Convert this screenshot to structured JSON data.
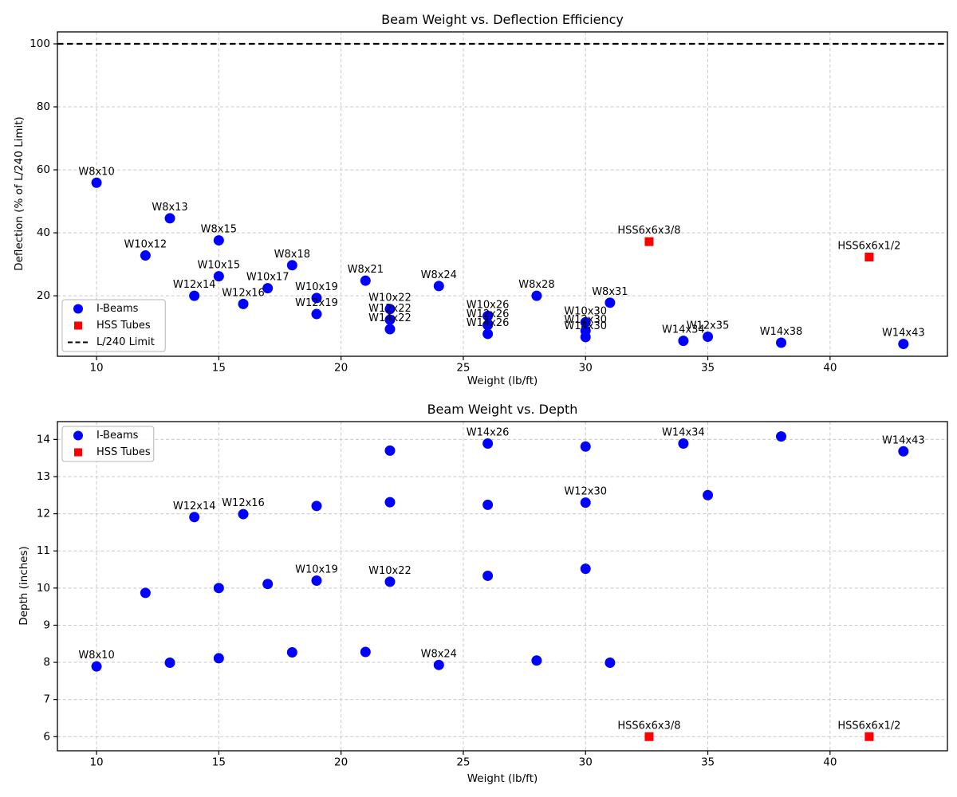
{
  "figure": {
    "background": "#ffffff",
    "colors": {
      "i_beam": "#0000ff",
      "hss": "#ff0000",
      "limit_line": "#000000",
      "grid": "#c8c8c8",
      "frame": "#000000",
      "text": "#000000"
    }
  },
  "chart_data": [
    {
      "type": "scatter",
      "title": "Beam Weight vs. Deflection Efficiency",
      "xlabel": "Weight (lb/ft)",
      "ylabel": "Deflection (% of L/240 Limit)",
      "xlim": [
        8.4,
        44.8
      ],
      "ylim": [
        0.8,
        103.8
      ],
      "xticks": [
        10,
        15,
        20,
        25,
        30,
        35,
        40
      ],
      "yticks": [
        20,
        40,
        60,
        80,
        100
      ],
      "grid": true,
      "legend_position": "lower-left",
      "legend": [
        {
          "label": "I-Beams",
          "marker": "circle",
          "color": "#0000ff"
        },
        {
          "label": "HSS Tubes",
          "marker": "square",
          "color": "#ff0000"
        },
        {
          "label": "L/240 Limit",
          "marker": "dashed-line",
          "color": "#000000"
        }
      ],
      "hline": {
        "y": 100,
        "style": "dashed",
        "color": "#000000"
      },
      "series": [
        {
          "name": "I-Beams",
          "marker": "circle",
          "color": "#0000ff",
          "points": [
            {
              "label": "W8x10",
              "x": 10,
              "y": 55.9,
              "labeled": true
            },
            {
              "label": "W10x12",
              "x": 12,
              "y": 32.8,
              "labeled": true
            },
            {
              "label": "W8x13",
              "x": 13,
              "y": 44.6,
              "labeled": true
            },
            {
              "label": "W12x14",
              "x": 14,
              "y": 20.0,
              "labeled": true
            },
            {
              "label": "W8x15",
              "x": 15,
              "y": 37.6,
              "labeled": true
            },
            {
              "label": "W10x15",
              "x": 15,
              "y": 26.2,
              "labeled": true
            },
            {
              "label": "W12x16",
              "x": 16,
              "y": 17.4,
              "labeled": true
            },
            {
              "label": "W10x17",
              "x": 17,
              "y": 22.4,
              "labeled": true
            },
            {
              "label": "W8x18",
              "x": 18,
              "y": 29.7,
              "labeled": true
            },
            {
              "label": "W10x19",
              "x": 19,
              "y": 19.3,
              "labeled": true
            },
            {
              "label": "W12x19",
              "x": 19,
              "y": 14.2,
              "labeled": true
            },
            {
              "label": "W8x21",
              "x": 21,
              "y": 24.8,
              "labeled": true
            },
            {
              "label": "W10x22",
              "x": 22,
              "y": 15.8,
              "labeled": true
            },
            {
              "label": "W12x22",
              "x": 22,
              "y": 12.4,
              "labeled": true
            },
            {
              "label": "W14x22",
              "x": 22,
              "y": 9.4,
              "labeled": true
            },
            {
              "label": "W8x24",
              "x": 24,
              "y": 23.1,
              "labeled": true
            },
            {
              "label": "W10x26",
              "x": 26,
              "y": 13.6,
              "labeled": true
            },
            {
              "label": "W12x26",
              "x": 26,
              "y": 10.7,
              "labeled": true
            },
            {
              "label": "W14x26",
              "x": 26,
              "y": 7.9,
              "labeled": true
            },
            {
              "label": "W8x28",
              "x": 28,
              "y": 20.0,
              "labeled": true
            },
            {
              "label": "W10x30",
              "x": 30,
              "y": 11.6,
              "labeled": true
            },
            {
              "label": "W12x30",
              "x": 30,
              "y": 8.9,
              "labeled": true
            },
            {
              "label": "W14x30",
              "x": 30,
              "y": 6.9,
              "labeled": true
            },
            {
              "label": "W8x31",
              "x": 31,
              "y": 17.8,
              "labeled": true
            },
            {
              "label": "W14x34",
              "x": 34,
              "y": 5.7,
              "labeled": true
            },
            {
              "label": "W12x35",
              "x": 35,
              "y": 7.0,
              "labeled": true
            },
            {
              "label": "W14x38",
              "x": 38,
              "y": 5.1,
              "labeled": true
            },
            {
              "label": "W14x43",
              "x": 43,
              "y": 4.7,
              "labeled": true
            }
          ]
        },
        {
          "name": "HSS Tubes",
          "marker": "square",
          "color": "#ff0000",
          "points": [
            {
              "label": "HSS6x6x3/8",
              "x": 32.6,
              "y": 37.2,
              "labeled": true
            },
            {
              "label": "HSS6x6x1/2",
              "x": 41.6,
              "y": 32.3,
              "labeled": true
            }
          ]
        }
      ]
    },
    {
      "type": "scatter",
      "title": "Beam Weight vs. Depth",
      "xlabel": "Weight (lb/ft)",
      "ylabel": "Depth (inches)",
      "xlim": [
        8.4,
        44.8
      ],
      "ylim": [
        5.62,
        14.48
      ],
      "xticks": [
        10,
        15,
        20,
        25,
        30,
        35,
        40
      ],
      "yticks": [
        6,
        7,
        8,
        9,
        10,
        11,
        12,
        13,
        14
      ],
      "grid": true,
      "legend_position": "upper-left",
      "legend": [
        {
          "label": "I-Beams",
          "marker": "circle",
          "color": "#0000ff"
        },
        {
          "label": "HSS Tubes",
          "marker": "square",
          "color": "#ff0000"
        }
      ],
      "series": [
        {
          "name": "I-Beams",
          "marker": "circle",
          "color": "#0000ff",
          "points": [
            {
              "label": "W8x10",
              "x": 10,
              "y": 7.89,
              "labeled": true
            },
            {
              "label": "W10x12",
              "x": 12,
              "y": 9.87,
              "labeled": false
            },
            {
              "label": "W8x13",
              "x": 13,
              "y": 7.99,
              "labeled": false
            },
            {
              "label": "W12x14",
              "x": 14,
              "y": 11.91,
              "labeled": true
            },
            {
              "label": "W8x15",
              "x": 15,
              "y": 8.11,
              "labeled": false
            },
            {
              "label": "W10x15",
              "x": 15,
              "y": 10.0,
              "labeled": false
            },
            {
              "label": "W12x16",
              "x": 16,
              "y": 11.99,
              "labeled": true
            },
            {
              "label": "W10x17",
              "x": 17,
              "y": 10.11,
              "labeled": false
            },
            {
              "label": "W8x18",
              "x": 18,
              "y": 8.27,
              "labeled": false
            },
            {
              "label": "W10x19",
              "x": 19,
              "y": 10.2,
              "labeled": true
            },
            {
              "label": "W12x19",
              "x": 19,
              "y": 12.21,
              "labeled": false
            },
            {
              "label": "W8x21",
              "x": 21,
              "y": 8.28,
              "labeled": false
            },
            {
              "label": "W10x22",
              "x": 22,
              "y": 10.17,
              "labeled": true
            },
            {
              "label": "W12x22",
              "x": 22,
              "y": 12.31,
              "labeled": false
            },
            {
              "label": "W14x22",
              "x": 22,
              "y": 13.7,
              "labeled": false
            },
            {
              "label": "W8x24",
              "x": 24,
              "y": 7.93,
              "labeled": true
            },
            {
              "label": "W10x26",
              "x": 26,
              "y": 10.33,
              "labeled": false
            },
            {
              "label": "W12x26",
              "x": 26,
              "y": 12.24,
              "labeled": false
            },
            {
              "label": "W14x26",
              "x": 26,
              "y": 13.89,
              "labeled": true
            },
            {
              "label": "W8x28",
              "x": 28,
              "y": 8.05,
              "labeled": false
            },
            {
              "label": "W10x30",
              "x": 30,
              "y": 10.52,
              "labeled": false
            },
            {
              "label": "W12x30",
              "x": 30,
              "y": 12.3,
              "labeled": true
            },
            {
              "label": "W14x30",
              "x": 30,
              "y": 13.81,
              "labeled": false
            },
            {
              "label": "W8x31",
              "x": 31,
              "y": 7.99,
              "labeled": false
            },
            {
              "label": "W14x34",
              "x": 34,
              "y": 13.89,
              "labeled": true
            },
            {
              "label": "W12x35",
              "x": 35,
              "y": 12.5,
              "labeled": false
            },
            {
              "label": "W14x38",
              "x": 38,
              "y": 14.08,
              "labeled": false
            },
            {
              "label": "W14x43",
              "x": 43,
              "y": 13.68,
              "labeled": true
            }
          ]
        },
        {
          "name": "HSS Tubes",
          "marker": "square",
          "color": "#ff0000",
          "points": [
            {
              "label": "HSS6x6x3/8",
              "x": 32.6,
              "y": 6.0,
              "labeled": true
            },
            {
              "label": "HSS6x6x1/2",
              "x": 41.6,
              "y": 6.0,
              "labeled": true
            }
          ]
        }
      ]
    }
  ]
}
